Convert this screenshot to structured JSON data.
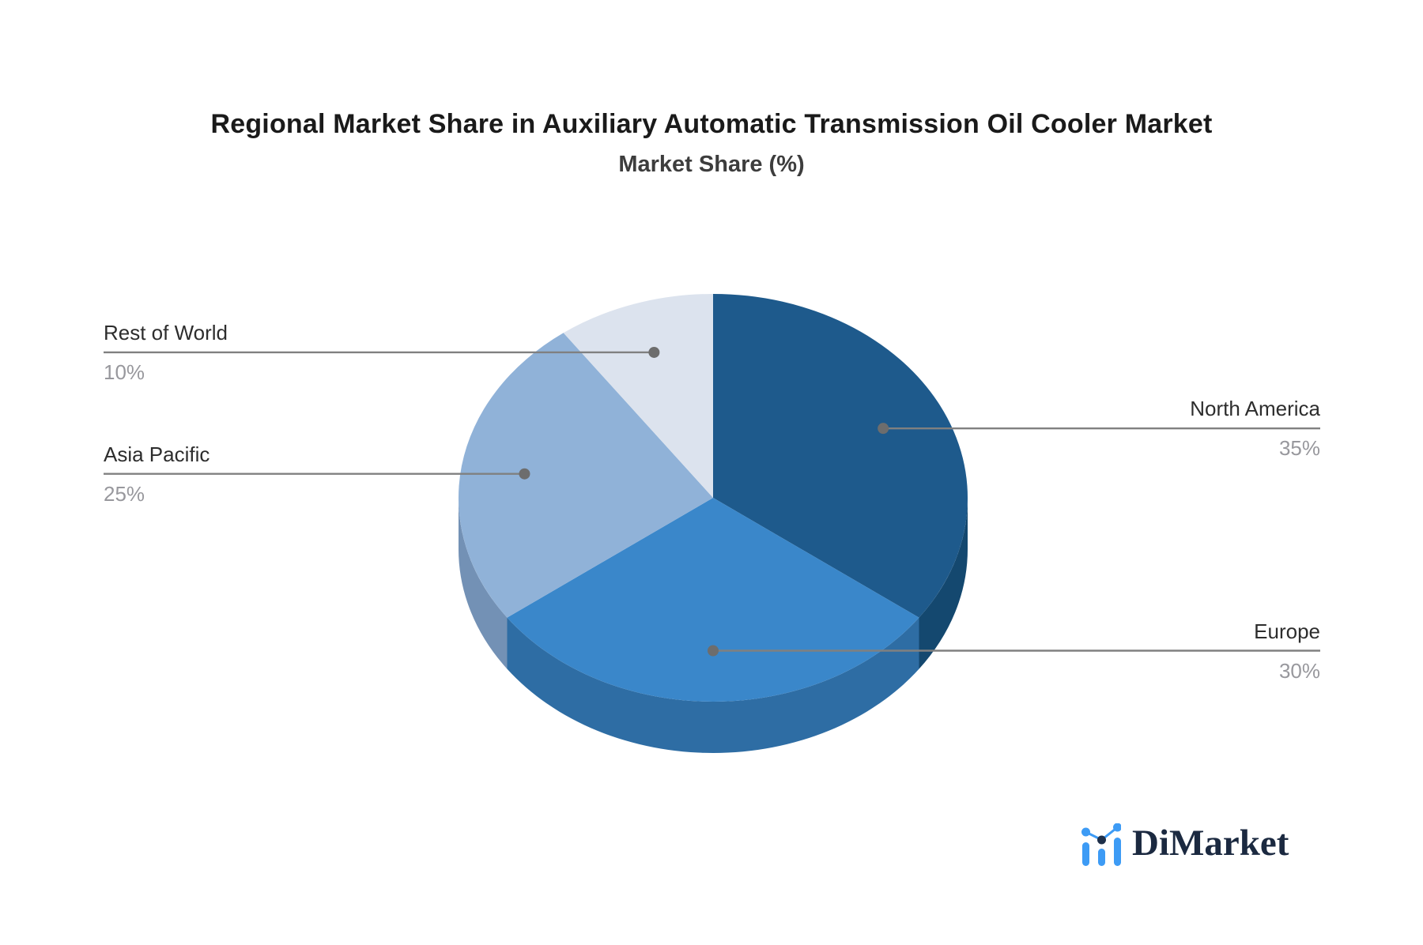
{
  "title": "Regional Market Share in Auxiliary Automatic Transmission Oil Cooler Market",
  "subtitle": "Market Share (%)",
  "chart_data": {
    "type": "pie",
    "style": "3d",
    "title": "Regional Market Share in Auxiliary Automatic Transmission Oil Cooler Market",
    "subtitle": "Market Share (%)",
    "unit": "%",
    "labels": [
      "North America",
      "Europe",
      "Asia Pacific",
      "Rest of World"
    ],
    "values": [
      35,
      30,
      25,
      10
    ],
    "value_labels": [
      "35%",
      "30%",
      "25%",
      "10%"
    ],
    "colors": [
      "#1e5a8c",
      "#3a87ca",
      "#90b2d8",
      "#dce3ee"
    ],
    "side_colors": [
      "#14486f",
      "#2e6da4",
      "#7391b5",
      "#b9c5d8"
    ],
    "label_sides": [
      "right",
      "right",
      "left",
      "left"
    ],
    "start_angle_deg": 90,
    "direction": "clockwise",
    "legend_position": "none",
    "leader_line_color": "#808080",
    "leader_dot_color": "#6d6d6d",
    "label_color": "#2d2d2d",
    "value_color": "#98989d"
  },
  "brand": {
    "name": "DiMarket",
    "icon": "bar-chart-logo-icon",
    "text_color": "#1b2940",
    "icon_color": "#3d9bf5",
    "icon_dark_dot_color": "#1e2f49"
  }
}
